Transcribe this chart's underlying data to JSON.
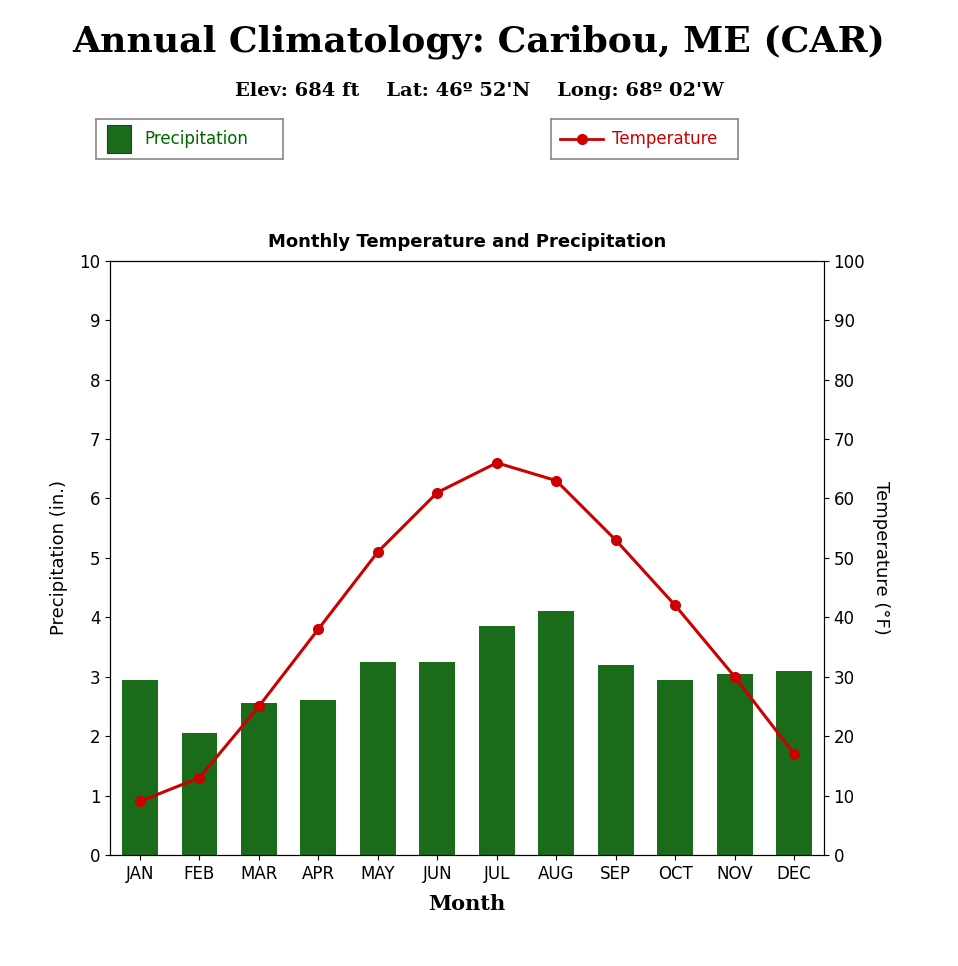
{
  "title": "Annual Climatology: Caribou, ME (CAR)",
  "subtitle": "Elev: 684 ft    Lat: 46º 52'N    Long: 68º 02'W",
  "chart_title": "Monthly Temperature and Precipitation",
  "months": [
    "JAN",
    "FEB",
    "MAR",
    "APR",
    "MAY",
    "JUN",
    "JUL",
    "AUG",
    "SEP",
    "OCT",
    "NOV",
    "DEC"
  ],
  "precipitation": [
    2.95,
    2.05,
    2.55,
    2.6,
    3.25,
    3.25,
    3.85,
    4.1,
    3.2,
    2.95,
    3.05,
    3.1
  ],
  "temperature": [
    9,
    13,
    25,
    38,
    51,
    61,
    66,
    63,
    53,
    42,
    30,
    17
  ],
  "bar_color": "#1a6b1a",
  "line_color": "#cc0000",
  "precip_ylabel": "Precipitation (in.)",
  "temp_ylabel": "Temperature (°F)",
  "xlabel": "Month",
  "precip_ylim": [
    0,
    10
  ],
  "temp_ylim": [
    0,
    100
  ],
  "precip_yticks": [
    0,
    1,
    2,
    3,
    4,
    5,
    6,
    7,
    8,
    9,
    10
  ],
  "temp_yticks": [
    0,
    10,
    20,
    30,
    40,
    50,
    60,
    70,
    80,
    90,
    100
  ],
  "background_color": "#ffffff",
  "legend_precip_label": "Precipitation",
  "legend_temp_label": "Temperature",
  "precip_label_color": "#006600",
  "temp_label_color": "#cc0000"
}
